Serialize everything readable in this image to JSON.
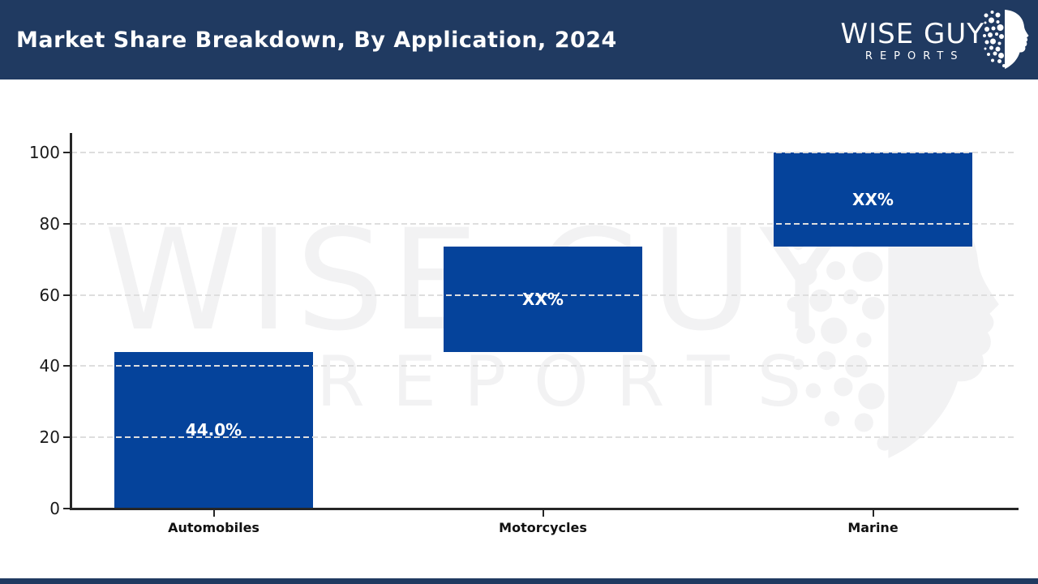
{
  "header": {
    "title": "Market Share Breakdown, By Application, 2024",
    "logo": {
      "line1": "WISE GUY",
      "line2": "REPORTS"
    }
  },
  "watermark": {
    "line1": "WISE GUY",
    "line2": "REPORTS"
  },
  "colors": {
    "header_bg": "#203a61",
    "bar": "#05439b",
    "grid": "#dedede",
    "axis": "#262626",
    "watermark": "#f2f2f3",
    "bar_label": "#ffffff",
    "title_text": "#ffffff"
  },
  "chart_data": {
    "type": "bar",
    "subtype": "waterfall-floating-bars",
    "title": "Market Share Breakdown, By Application, 2024",
    "categories": [
      "Automobiles",
      "Motorcycles",
      "Marine"
    ],
    "segments": [
      {
        "category": "Automobiles",
        "start": 0.0,
        "end": 44.0,
        "label": "44.0%"
      },
      {
        "category": "Motorcycles",
        "start": 44.0,
        "end": 73.6,
        "label": "XX%"
      },
      {
        "category": "Marine",
        "start": 73.6,
        "end": 100.0,
        "label": "XX%"
      }
    ],
    "yticks": [
      0,
      20,
      40,
      60,
      80,
      100
    ],
    "ylim": [
      0,
      105
    ],
    "xlabel": "",
    "ylabel": "",
    "grid": "horizontal-dashed",
    "legend": "none"
  }
}
